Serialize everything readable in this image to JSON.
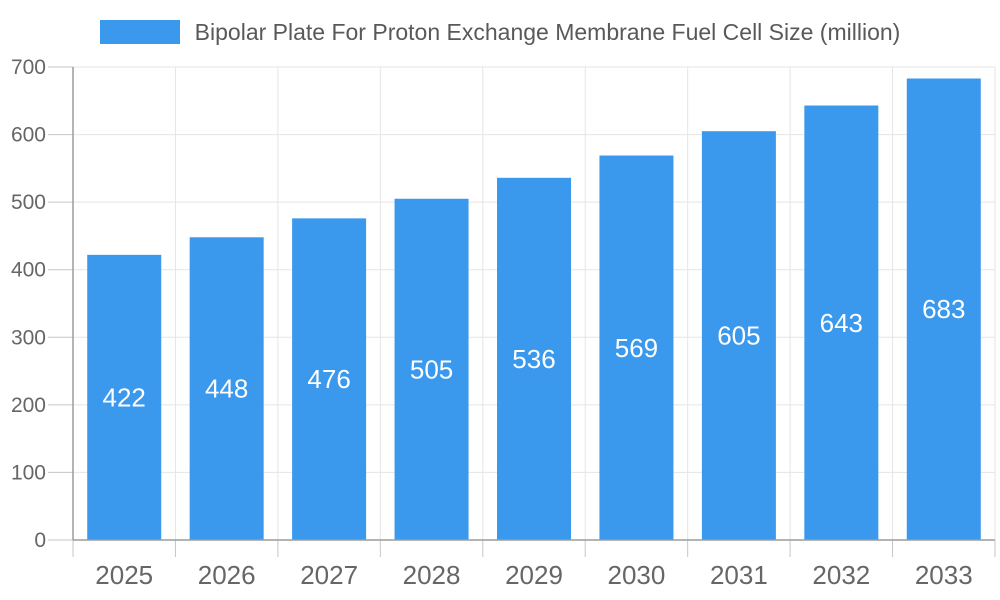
{
  "legend": {
    "label": "Bipolar Plate For Proton Exchange Membrane Fuel Cell Size (million)"
  },
  "colors": {
    "bar": "#3A99EC",
    "grid_line": "#E5E5E5",
    "axis_line": "#9C9C9C",
    "tick": "#C6C6C6",
    "axis_label": "#666666",
    "legend_text": "#595959",
    "value_label": "#FFFFFF",
    "background": "#FFFFFF"
  },
  "chart_data": {
    "type": "bar",
    "title": "Bipolar Plate For Proton Exchange Membrane Fuel Cell Size (million)",
    "categories": [
      "2025",
      "2026",
      "2027",
      "2028",
      "2029",
      "2030",
      "2031",
      "2032",
      "2033"
    ],
    "values": [
      422,
      448,
      476,
      505,
      536,
      569,
      605,
      643,
      683
    ],
    "xlabel": "",
    "ylabel": "",
    "ylim": [
      0,
      700
    ],
    "yticks": [
      0,
      100,
      200,
      300,
      400,
      500,
      600,
      700
    ],
    "grid": true,
    "legend_position": "top-center",
    "value_label_position": "inside-center"
  }
}
